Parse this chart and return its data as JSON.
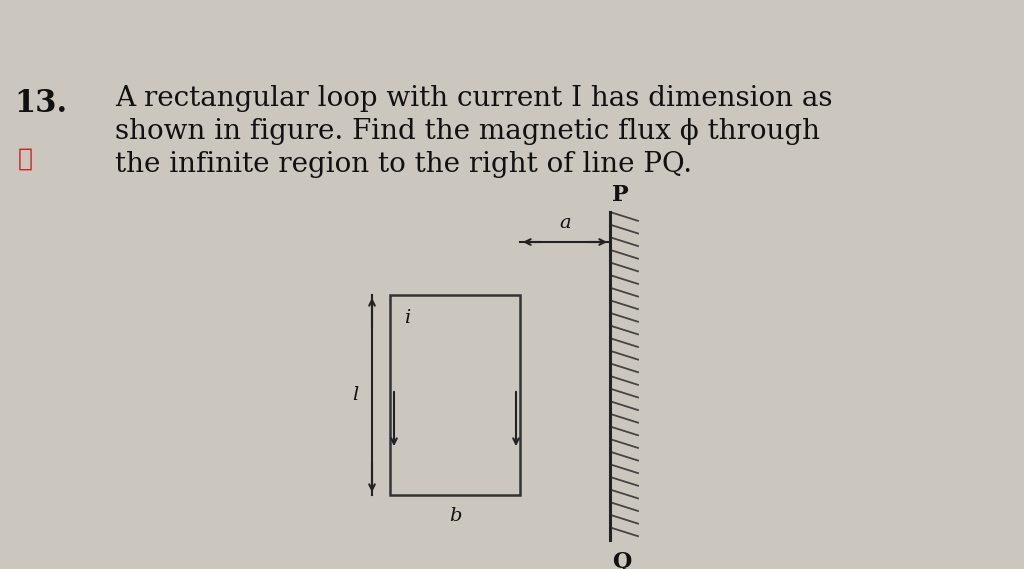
{
  "bg_color": "#ccc7be",
  "text_color": "#111111",
  "question_number": "13.",
  "question_text_line1": "A rectangular loop with current I has dimension as",
  "question_text_line2": "shown in figure. Find the magnetic flux ϕ through",
  "question_text_line3": "the infinite region to the right of line PQ.",
  "font_size_number": 22,
  "font_size_text": 20,
  "font_size_labels": 16,
  "arrow_color": "#222222",
  "rect_color": "#333333",
  "hatch_color": "#444444",
  "pq_line_color": "#222222",
  "cross_color": "#cc2222"
}
